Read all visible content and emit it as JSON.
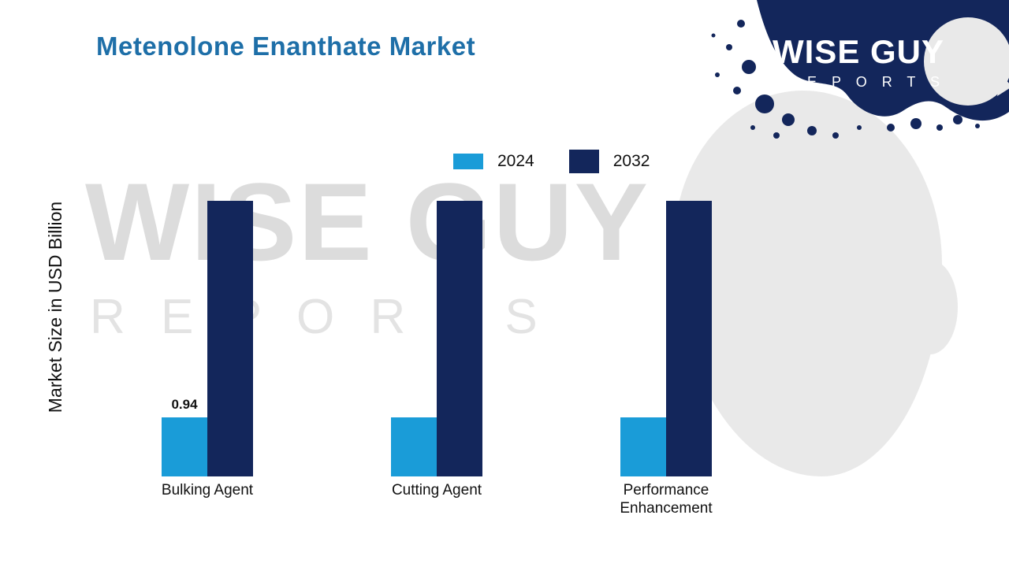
{
  "page": {
    "title": "Metenolone Enanthate Market"
  },
  "logo": {
    "line1": "WISE GUY",
    "line2": "R E P O R T S"
  },
  "watermark": {
    "line1": "WISE GUY",
    "line2": "R E P O R T S"
  },
  "colors": {
    "title_blue": "#1e6fa8",
    "series_2024_blue": "#1a9cd8",
    "series_2032_navy": "#13265b",
    "watermark_gray": "#dcdcdc"
  },
  "chart_data": {
    "type": "bar",
    "title": "Metenolone Enanthate Market",
    "ylabel": "Market Size in USD Billion",
    "xlabel": "",
    "categories": [
      "Bulking Agent",
      "Cutting Agent",
      "Performance Enhancement"
    ],
    "series": [
      {
        "name": "2024",
        "color": "#1a9cd8",
        "values": [
          0.94,
          0.94,
          0.94
        ]
      },
      {
        "name": "2032",
        "color": "#13265b",
        "values": [
          4.4,
          4.4,
          4.4
        ]
      }
    ],
    "ylim": [
      0,
      4.4
    ],
    "grid": false,
    "legend_position": "top",
    "data_labels": [
      {
        "series_index": 0,
        "category_index": 0,
        "text": "0.94"
      }
    ]
  }
}
